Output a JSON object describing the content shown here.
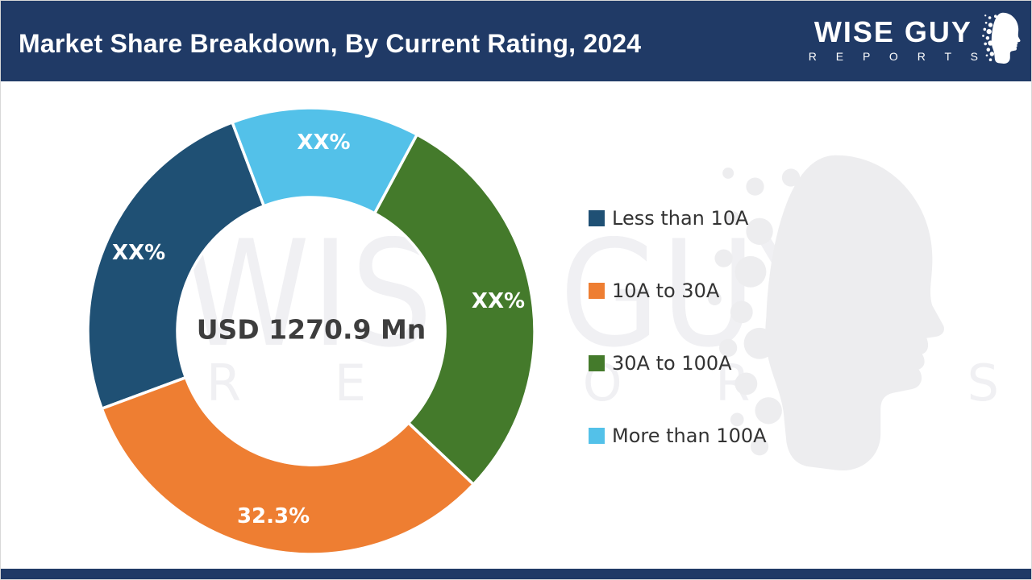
{
  "header": {
    "title": "Market Share Breakdown, By Current Rating, 2024",
    "background_color": "#203A66",
    "logo": {
      "brand_top": "WISE GUY",
      "brand_bottom": "R E P O R T S"
    }
  },
  "watermark": {
    "line1": "WISE GUY",
    "line2": "R E P O R T S",
    "text_color": "#F0F0F3",
    "face_color": "#EDEDEF"
  },
  "chart_data": {
    "type": "pie",
    "subtype": "donut",
    "title": "Market Share Breakdown, By Current Rating, 2024",
    "center_label": "USD 1270.9 Mn",
    "center_label_color": "#3D3D3D",
    "slice_label_color": "#FFFFFF",
    "start_angle_deg": 339.3,
    "direction": "counterclockwise",
    "legend_position": "right",
    "categories": [
      "Less than 10A",
      "10A to 30A",
      "30A to 100A",
      "More than 100A"
    ],
    "values": [
      24.9,
      32.3,
      29.2,
      13.6
    ],
    "slices": [
      {
        "name": "Less than 10A",
        "value_pct": 24.9,
        "label": "XX%",
        "color": "#1F5074"
      },
      {
        "name": "10A to 30A",
        "value_pct": 32.3,
        "label": "32.3%",
        "color": "#EE7E32"
      },
      {
        "name": "30A to 100A",
        "value_pct": 29.2,
        "label": "XX%",
        "color": "#447A2B"
      },
      {
        "name": "More than 100A",
        "value_pct": 13.6,
        "label": "XX%",
        "color": "#53C1E9"
      }
    ]
  },
  "footer": {
    "background_color": "#203A66"
  }
}
